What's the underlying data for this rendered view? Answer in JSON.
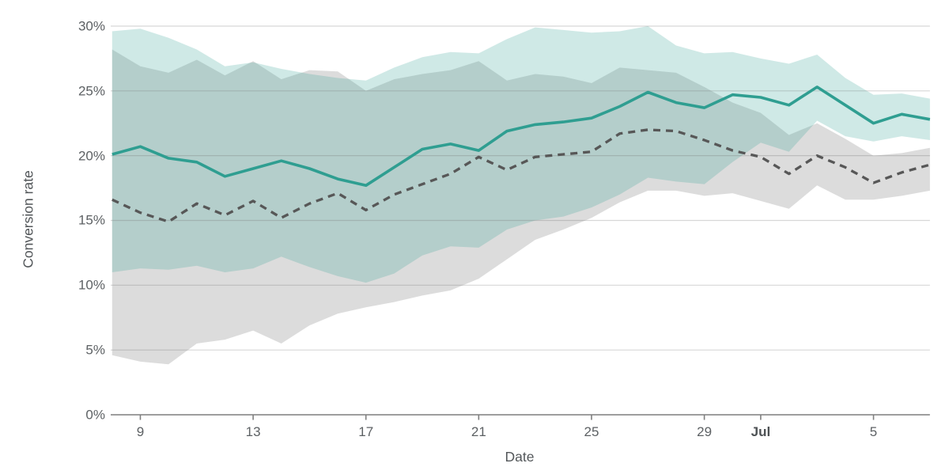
{
  "axes": {
    "y_title": "Conversion rate",
    "x_title": "Date"
  },
  "chart_data": {
    "type": "line",
    "title": "",
    "xlabel": "Date",
    "ylabel": "Conversion rate",
    "ylim": [
      0,
      30
    ],
    "grid": "horizontal",
    "legend": "none",
    "x": [
      "Jun 8",
      "Jun 9",
      "Jun 10",
      "Jun 11",
      "Jun 12",
      "Jun 13",
      "Jun 14",
      "Jun 15",
      "Jun 16",
      "Jun 17",
      "Jun 18",
      "Jun 19",
      "Jun 20",
      "Jun 21",
      "Jun 22",
      "Jun 23",
      "Jun 24",
      "Jun 25",
      "Jun 26",
      "Jun 27",
      "Jun 28",
      "Jun 29",
      "Jun 30",
      "Jul 1",
      "Jul 2",
      "Jul 3",
      "Jul 4",
      "Jul 5",
      "Jul 6",
      "Jul 7"
    ],
    "series": [
      {
        "name": "variant-conversion-rate",
        "style": "solid",
        "color": "#2f9e91",
        "values": [
          20.1,
          20.7,
          19.8,
          19.5,
          18.4,
          19.0,
          19.6,
          19.0,
          18.2,
          17.7,
          19.1,
          20.5,
          20.9,
          20.4,
          21.9,
          22.4,
          22.6,
          22.9,
          23.8,
          24.9,
          24.1,
          23.7,
          24.7,
          24.5,
          23.9,
          25.3,
          23.9,
          22.5,
          23.2,
          22.8
        ]
      },
      {
        "name": "control-conversion-rate",
        "style": "dashed",
        "color": "#575757",
        "values": [
          16.6,
          15.6,
          14.9,
          16.3,
          15.4,
          16.5,
          15.2,
          16.3,
          17.1,
          15.8,
          17.0,
          17.8,
          18.6,
          19.9,
          18.9,
          19.9,
          20.1,
          20.3,
          21.7,
          22.0,
          21.9,
          21.2,
          20.4,
          19.9,
          18.6,
          20.0,
          19.1,
          17.9,
          18.7,
          19.3
        ]
      }
    ],
    "bands": [
      {
        "name": "control-confidence-band",
        "color": "rgba(125,125,125,0.27)",
        "upper": [
          28.2,
          26.9,
          26.4,
          27.4,
          26.2,
          27.3,
          25.9,
          26.6,
          26.5,
          25.0,
          25.9,
          26.3,
          26.6,
          27.3,
          25.8,
          26.3,
          26.1,
          25.6,
          26.8,
          26.6,
          26.4,
          25.3,
          24.1,
          23.3,
          21.6,
          22.5,
          21.3,
          20.0,
          20.2,
          20.6
        ],
        "lower": [
          4.6,
          4.1,
          3.9,
          5.5,
          5.8,
          6.5,
          5.5,
          6.9,
          7.8,
          8.3,
          8.7,
          9.2,
          9.6,
          10.5,
          12.0,
          13.5,
          14.3,
          15.2,
          16.4,
          17.3,
          17.3,
          16.9,
          17.1,
          16.5,
          15.9,
          17.7,
          16.6,
          16.6,
          16.9,
          17.3
        ]
      },
      {
        "name": "variant-confidence-band",
        "color": "rgba(47,158,145,0.23)",
        "upper": [
          29.6,
          29.8,
          29.1,
          28.2,
          26.9,
          27.2,
          26.7,
          26.3,
          26.0,
          25.8,
          26.8,
          27.6,
          28.0,
          27.9,
          29.0,
          29.9,
          29.7,
          29.5,
          29.6,
          30.0,
          28.5,
          27.9,
          28.0,
          27.5,
          27.1,
          27.8,
          26.0,
          24.7,
          24.8,
          24.4
        ],
        "lower": [
          11.0,
          11.3,
          11.2,
          11.5,
          11.0,
          11.3,
          12.2,
          11.4,
          10.7,
          10.2,
          10.9,
          12.3,
          13.0,
          12.9,
          14.3,
          15.0,
          15.3,
          16.0,
          17.0,
          18.3,
          18.0,
          17.8,
          19.5,
          21.0,
          20.3,
          22.7,
          21.5,
          21.1,
          21.5,
          21.2
        ]
      }
    ],
    "y_ticks": [
      {
        "value": 0,
        "label": "0%"
      },
      {
        "value": 5,
        "label": "5%"
      },
      {
        "value": 10,
        "label": "10%"
      },
      {
        "value": 15,
        "label": "15%"
      },
      {
        "value": 20,
        "label": "20%"
      },
      {
        "value": 25,
        "label": "25%"
      },
      {
        "value": 30,
        "label": "30%"
      }
    ],
    "x_ticks": [
      {
        "index": 1,
        "label": "9",
        "bold": false
      },
      {
        "index": 5,
        "label": "13",
        "bold": false
      },
      {
        "index": 9,
        "label": "17",
        "bold": false
      },
      {
        "index": 13,
        "label": "21",
        "bold": false
      },
      {
        "index": 17,
        "label": "25",
        "bold": false
      },
      {
        "index": 21,
        "label": "29",
        "bold": false
      },
      {
        "index": 23,
        "label": "Jul",
        "bold": true
      },
      {
        "index": 27,
        "label": "5",
        "bold": false
      }
    ],
    "axis_color": "#7f7f7f",
    "gridline_color": "rgba(110,110,110,0.28)"
  }
}
